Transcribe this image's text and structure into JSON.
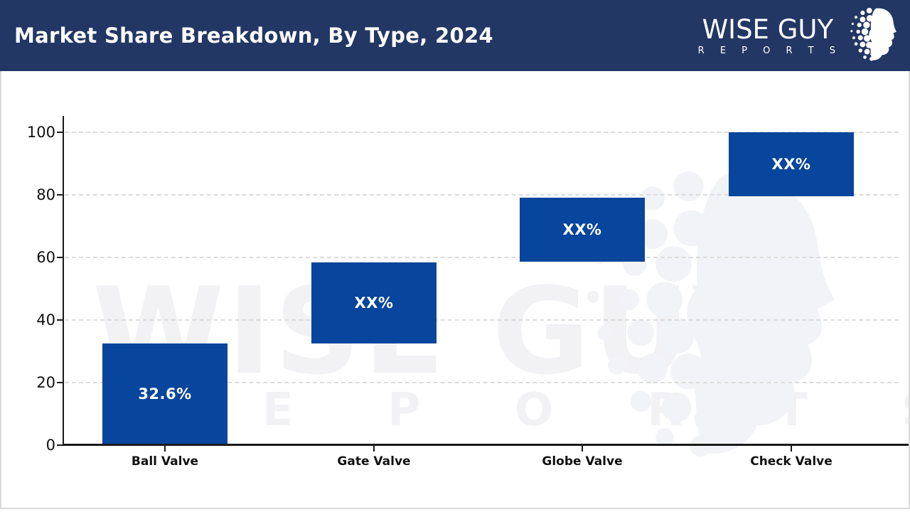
{
  "header": {
    "title": "Market Share Breakdown, By Type, 2024",
    "bg_color": "#233764",
    "logo": {
      "line1": "WISE GUY",
      "line2": "R E P O R T S"
    }
  },
  "watermark": {
    "line1": "WISE GUY",
    "line2": "R E P O R T S"
  },
  "chart_data": {
    "type": "bar",
    "subtype": "waterfall",
    "title": "Market Share Breakdown, By Type, 2024",
    "categories": [
      "Ball Valve",
      "Gate Valve",
      "Globe Valve",
      "Check Valve"
    ],
    "segments": [
      {
        "category": "Ball Valve",
        "start": 0,
        "end": 32.6,
        "label": "32.6%"
      },
      {
        "category": "Gate Valve",
        "start": 32.6,
        "end": 58.4,
        "label": "XX%"
      },
      {
        "category": "Globe Valve",
        "start": 58.6,
        "end": 79.2,
        "label": "XX%"
      },
      {
        "category": "Check Valve",
        "start": 79.6,
        "end": 100,
        "label": "XX%"
      }
    ],
    "yticks": [
      0,
      20,
      40,
      60,
      80,
      100
    ],
    "ylim": [
      0,
      105
    ],
    "xlabel": "",
    "ylabel": "",
    "grid": "horizontal-dashed",
    "legend": "none",
    "bar_color": "#08459c",
    "bar_label_color": "#ffffff",
    "axis_color": "#1a1a1a",
    "grid_color": "#dcdcdc"
  }
}
